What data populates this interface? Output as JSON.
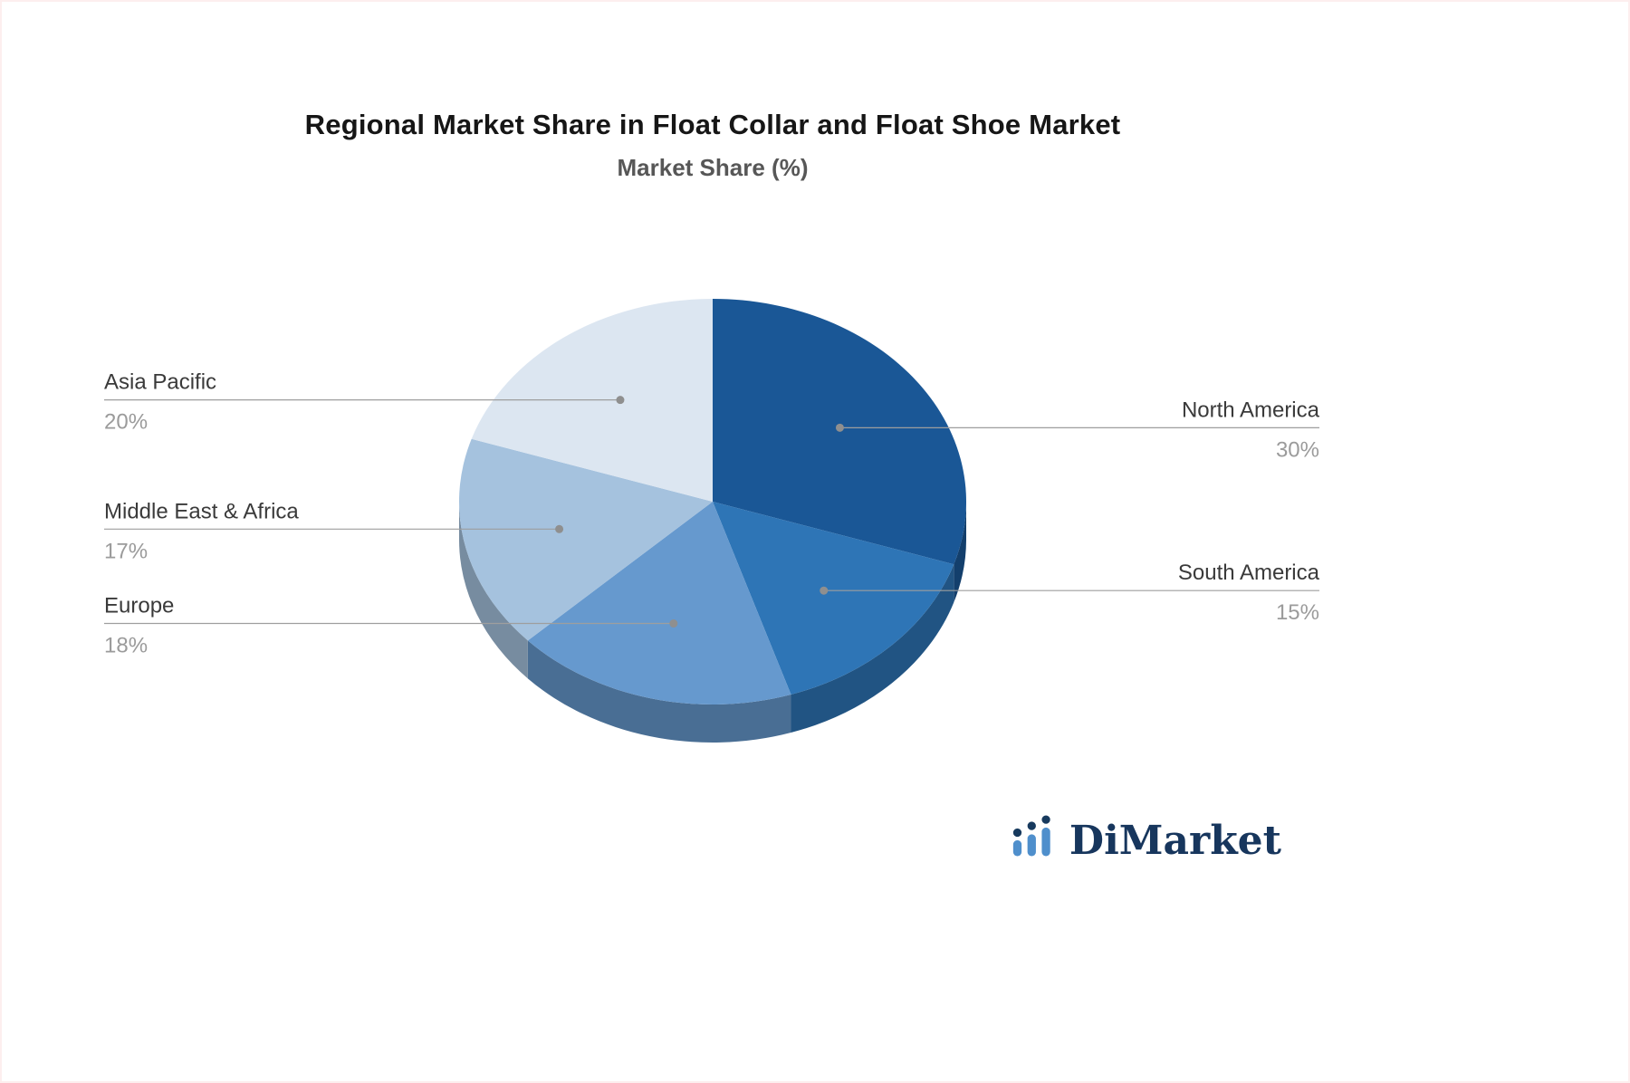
{
  "header": {
    "title": "Regional Market Share in Float Collar and Float Shoe Market",
    "subtitle": "Market Share (%)"
  },
  "branding": {
    "logo_text": "DiMarket",
    "logo_icon": "bar-chart-icon",
    "logo_text_color": "#17365d",
    "icon_bar_color": "#4f8fcc",
    "icon_dot_color": "#173a5e"
  },
  "chart_data": {
    "type": "pie",
    "title": "Regional Market Share in Float Collar and Float Shoe Market",
    "subtitle": "Market Share (%)",
    "unit": "%",
    "start_angle_deg": 0,
    "direction": "clockwise",
    "effect": "3d",
    "legend_position": "none",
    "labels_style": "callout-leader-lines",
    "slices": [
      {
        "label": "North America",
        "value": 30,
        "pct_label": "30%",
        "color": "#1a5796",
        "label_side": "right"
      },
      {
        "label": "South America",
        "value": 15,
        "pct_label": "15%",
        "color": "#2e75b6",
        "label_side": "right"
      },
      {
        "label": "Europe",
        "value": 18,
        "pct_label": "18%",
        "color": "#6699ce",
        "label_side": "left"
      },
      {
        "label": "Middle East & Africa",
        "value": 17,
        "pct_label": "17%",
        "color": "#a5c2de",
        "label_side": "left"
      },
      {
        "label": "Asia Pacific",
        "value": 20,
        "pct_label": "20%",
        "color": "#dce6f1",
        "label_side": "left"
      }
    ],
    "style": {
      "leader_line_color": "#9e9e9e",
      "leader_dot_color": "#8f8f8f",
      "label_color": "#3a3a3a",
      "pct_color": "#9b9b9b",
      "side_darken_factor": 0.72
    }
  }
}
